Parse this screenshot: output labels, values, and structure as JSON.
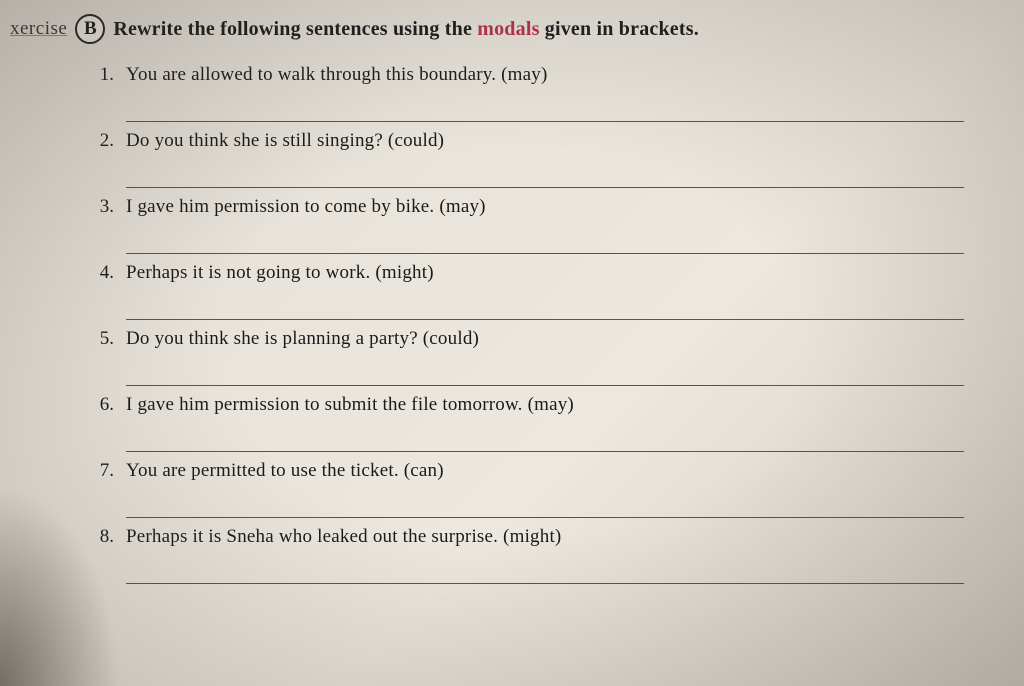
{
  "header": {
    "xercise_prefix": "xercise",
    "badge_letter": "B",
    "instruction_pre": "Rewrite the following sentences using the ",
    "instruction_modal": "modals",
    "instruction_post": " given in brackets."
  },
  "questions": [
    {
      "num": "1.",
      "text": "You are allowed to walk through this boundary. (may)"
    },
    {
      "num": "2.",
      "text": "Do you think she is still singing? (could)"
    },
    {
      "num": "3.",
      "text": "I gave him permission to come by bike. (may)"
    },
    {
      "num": "4.",
      "text": "Perhaps it is not going to work. (might)"
    },
    {
      "num": "5.",
      "text": "Do you think she is planning a party? (could)"
    },
    {
      "num": "6.",
      "text": "I gave him permission to submit the file tomorrow. (may)"
    },
    {
      "num": "7.",
      "text": "You are permitted to use the ticket. (can)"
    },
    {
      "num": "8.",
      "text": "Perhaps it is Sneha who leaked out the surprise. (might)"
    }
  ],
  "styling": {
    "page_bg_start": "#d8d4cc",
    "page_bg_end": "#ece8e0",
    "text_color": "#1a1a1a",
    "modal_color": "#b8304a",
    "line_color": "#555",
    "badge_border": "#222",
    "font_body": 19,
    "font_instruction": 20
  }
}
